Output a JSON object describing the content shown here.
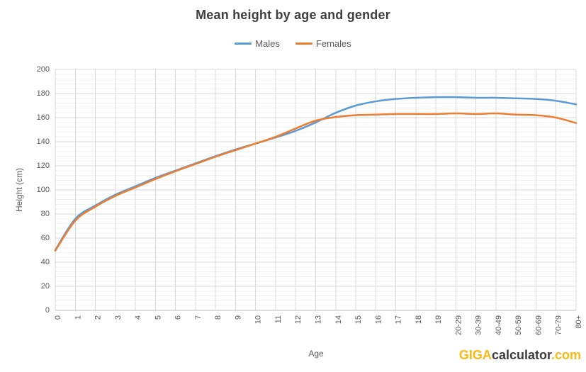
{
  "chart_data": {
    "type": "line",
    "title": "Mean height by age and gender",
    "xlabel": "Age",
    "ylabel": "Height (cm)",
    "ylim": [
      0,
      200
    ],
    "y_major_unit": 20,
    "y_minor_unit": 4,
    "grid": true,
    "legend_position": "top",
    "smoothed_lines": true,
    "categories": [
      "0",
      "1",
      "2",
      "3",
      "4",
      "5",
      "6",
      "7",
      "8",
      "9",
      "10",
      "11",
      "12",
      "13",
      "14",
      "15",
      "16",
      "17",
      "18",
      "19",
      "20-29",
      "30-39",
      "40-49",
      "50-59",
      "60-69",
      "70-79",
      "80+"
    ],
    "series": [
      {
        "name": "Males",
        "color": "#5B9BD5",
        "values": [
          50,
          76,
          87,
          96,
          103,
          110,
          116,
          122,
          128,
          133.5,
          138.5,
          143.5,
          149,
          156,
          164,
          170,
          173.5,
          175.5,
          176.5,
          177,
          177,
          176.5,
          176.5,
          176,
          175.5,
          174,
          171
        ]
      },
      {
        "name": "Females",
        "color": "#ED7D31",
        "values": [
          49.5,
          74.5,
          86,
          95,
          102,
          109,
          115.5,
          121.5,
          127.5,
          133,
          138.5,
          144,
          151,
          157.5,
          160.5,
          162,
          162.5,
          163,
          163,
          163,
          163.5,
          163,
          163.5,
          162.5,
          162,
          160,
          155.5
        ]
      }
    ],
    "y_tick_labels": [
      "0",
      "20",
      "40",
      "60",
      "80",
      "100",
      "120",
      "140",
      "160",
      "180",
      "200"
    ]
  },
  "branding": {
    "giga": "GIGA",
    "calculator": "calculator",
    "dotcom": ".com",
    "yellow": "#FDB913",
    "dark": "#3C3C3C"
  },
  "colors": {
    "title_text": "#3F3F3F",
    "axis_text": "#595959",
    "major_gridline": "#D9D9D9",
    "minor_gridline": "#F2F2F2",
    "axis_line": "#BFBFBF",
    "background": "#FFFFFF"
  }
}
